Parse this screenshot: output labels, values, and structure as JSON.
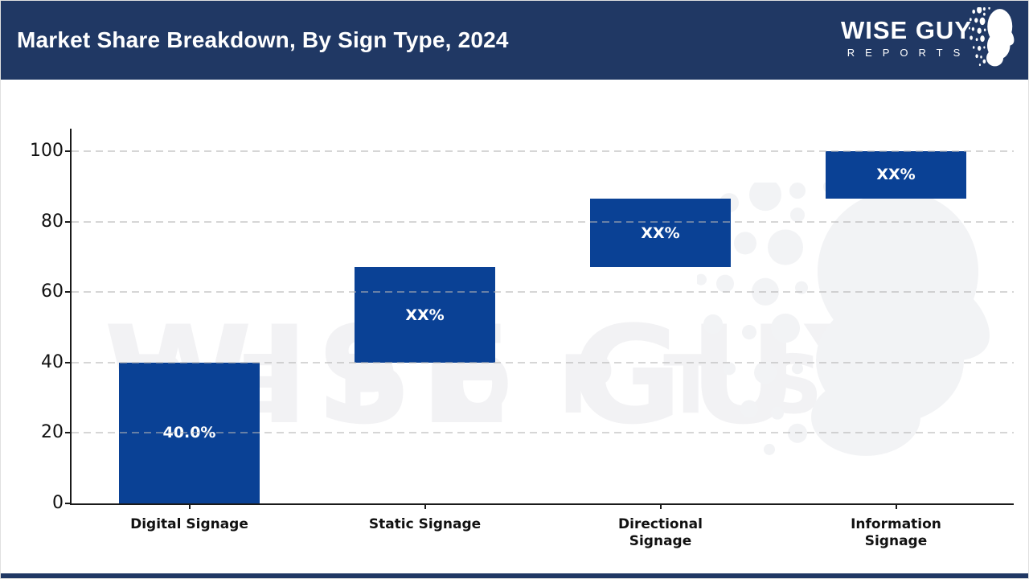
{
  "header": {
    "title": "Market Share Breakdown, By Sign Type, 2024",
    "logo": {
      "name": "WISE GUY",
      "subtitle": "REPORTS"
    }
  },
  "watermark": {
    "line1": "WISE GUY",
    "line2": "REPORTS"
  },
  "chart_data": {
    "type": "bar",
    "variant": "floating-cumulative-bars",
    "title": "Market Share Breakdown, By Sign Type, 2024",
    "categories": [
      "Digital Signage",
      "Static Signage",
      "Directional Signage",
      "Information Signage"
    ],
    "bars": [
      {
        "category": "Digital Signage",
        "display_label": "Digital Signage",
        "start": 0,
        "end": 40,
        "value_label": "40.0%"
      },
      {
        "category": "Static Signage",
        "display_label": "Static Signage",
        "start": 40,
        "end": 67,
        "value_label": "XX%"
      },
      {
        "category": "Directional Signage",
        "display_label": "Directional\nSignage",
        "start": 67,
        "end": 86.5,
        "value_label": "XX%"
      },
      {
        "category": "Information Signage",
        "display_label": "Information\nSignage",
        "start": 86.5,
        "end": 100,
        "value_label": "XX%"
      }
    ],
    "yticks": [
      0,
      20,
      40,
      60,
      80,
      100
    ],
    "ylim": [
      0,
      105
    ],
    "xlabel": "",
    "ylabel": "",
    "grid": "horizontal-dashed",
    "legend": "none",
    "bar_color": "#0a4195",
    "bar_label_color": "#ffffff"
  },
  "colors": {
    "header_bg": "#203864",
    "footer_bg": "#203864",
    "bar_blue": "#0a4195",
    "axis": "#1a1a1a",
    "grid": "#d8d8d8",
    "watermark": "#f2f2f4",
    "text_dark": "#111111",
    "white": "#ffffff"
  }
}
